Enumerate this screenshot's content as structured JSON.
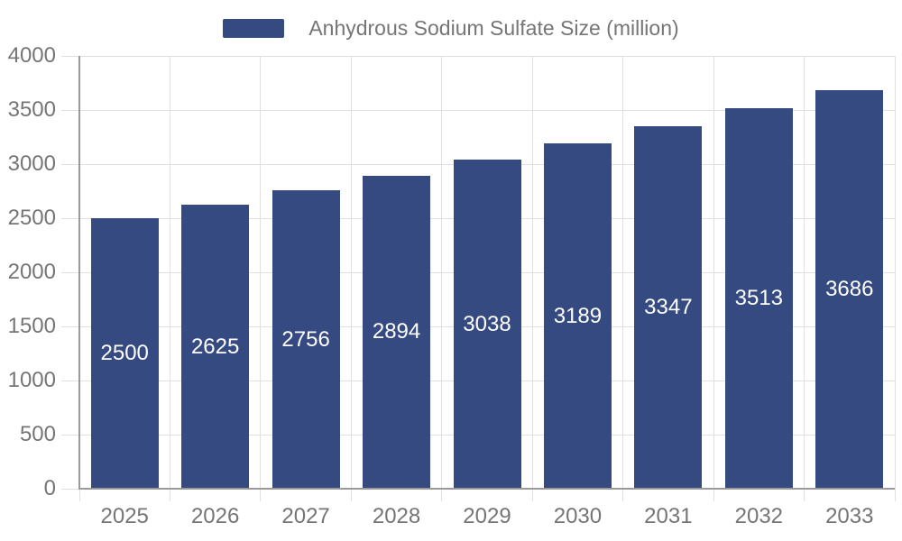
{
  "chart_data": {
    "type": "bar",
    "title": "",
    "legend": "Anhydrous Sodium Sulfate Size (million)",
    "categories": [
      "2025",
      "2026",
      "2027",
      "2028",
      "2029",
      "2030",
      "2031",
      "2032",
      "2033"
    ],
    "values": [
      2500,
      2625,
      2756,
      2894,
      3038,
      3189,
      3347,
      3513,
      3686
    ],
    "xlabel": "",
    "ylabel": "",
    "ylim": [
      0,
      4000
    ],
    "yticks": [
      0,
      500,
      1000,
      1500,
      2000,
      2500,
      3000,
      3500,
      4000
    ],
    "grid": true,
    "legend_position": "top",
    "bar_label_position": "inside-center",
    "colors": {
      "bar": "#364a82",
      "grid": "#e0e0e0",
      "axis": "#999999",
      "tick_text": "#757575",
      "bar_label_text": "#ffffff",
      "background": "#ffffff"
    }
  }
}
